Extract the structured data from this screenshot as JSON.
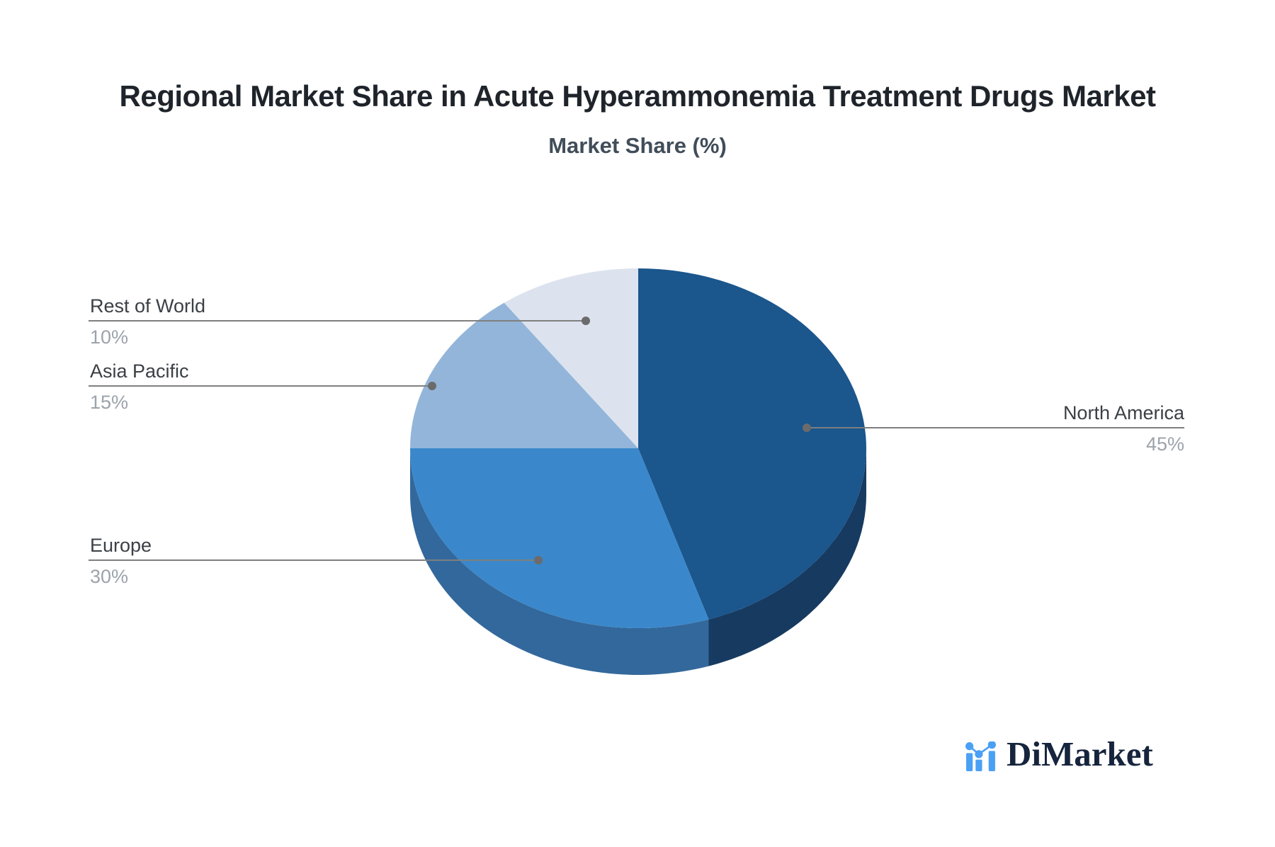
{
  "header": {
    "title": "Regional Market Share in Acute Hyperammonemia Treatment Drugs Market",
    "subtitle": "Market Share (%)"
  },
  "chart_data": {
    "type": "pie",
    "style": "3d",
    "title": "Regional Market Share in Acute Hyperammonemia Treatment Drugs Market",
    "subtitle": "Market Share (%)",
    "unit": "%",
    "categories": [
      "North America",
      "Europe",
      "Asia Pacific",
      "Rest of World"
    ],
    "values": [
      45,
      30,
      15,
      10
    ],
    "value_labels": [
      "45%",
      "30%",
      "15%",
      "10%"
    ],
    "slice_colors": [
      "#1b568d",
      "#3a88cb",
      "#93b5d9",
      "#dce3ef"
    ],
    "slice_side_colors": [
      "#173a60",
      "#33689c",
      "#7ea3c9",
      "#c9d3e2"
    ],
    "start_angle_deg": 0,
    "direction": "clockwise",
    "legend_position": "leader-line-callouts",
    "leader_line_color": "#7f7f7f",
    "leader_dot_color": "#6b6b6b",
    "background": "#ffffff"
  },
  "callouts": {
    "rest_of_world": {
      "name": "Rest of World",
      "value": "10%"
    },
    "asia_pacific": {
      "name": "Asia Pacific",
      "value": "15%"
    },
    "europe": {
      "name": "Europe",
      "value": "30%"
    },
    "north_america": {
      "name": "North America",
      "value": "45%"
    }
  },
  "logo": {
    "text": "DiMarket",
    "icon": "bar-chart-icon",
    "icon_color": "#4aa0f5",
    "text_color": "#16243d"
  }
}
